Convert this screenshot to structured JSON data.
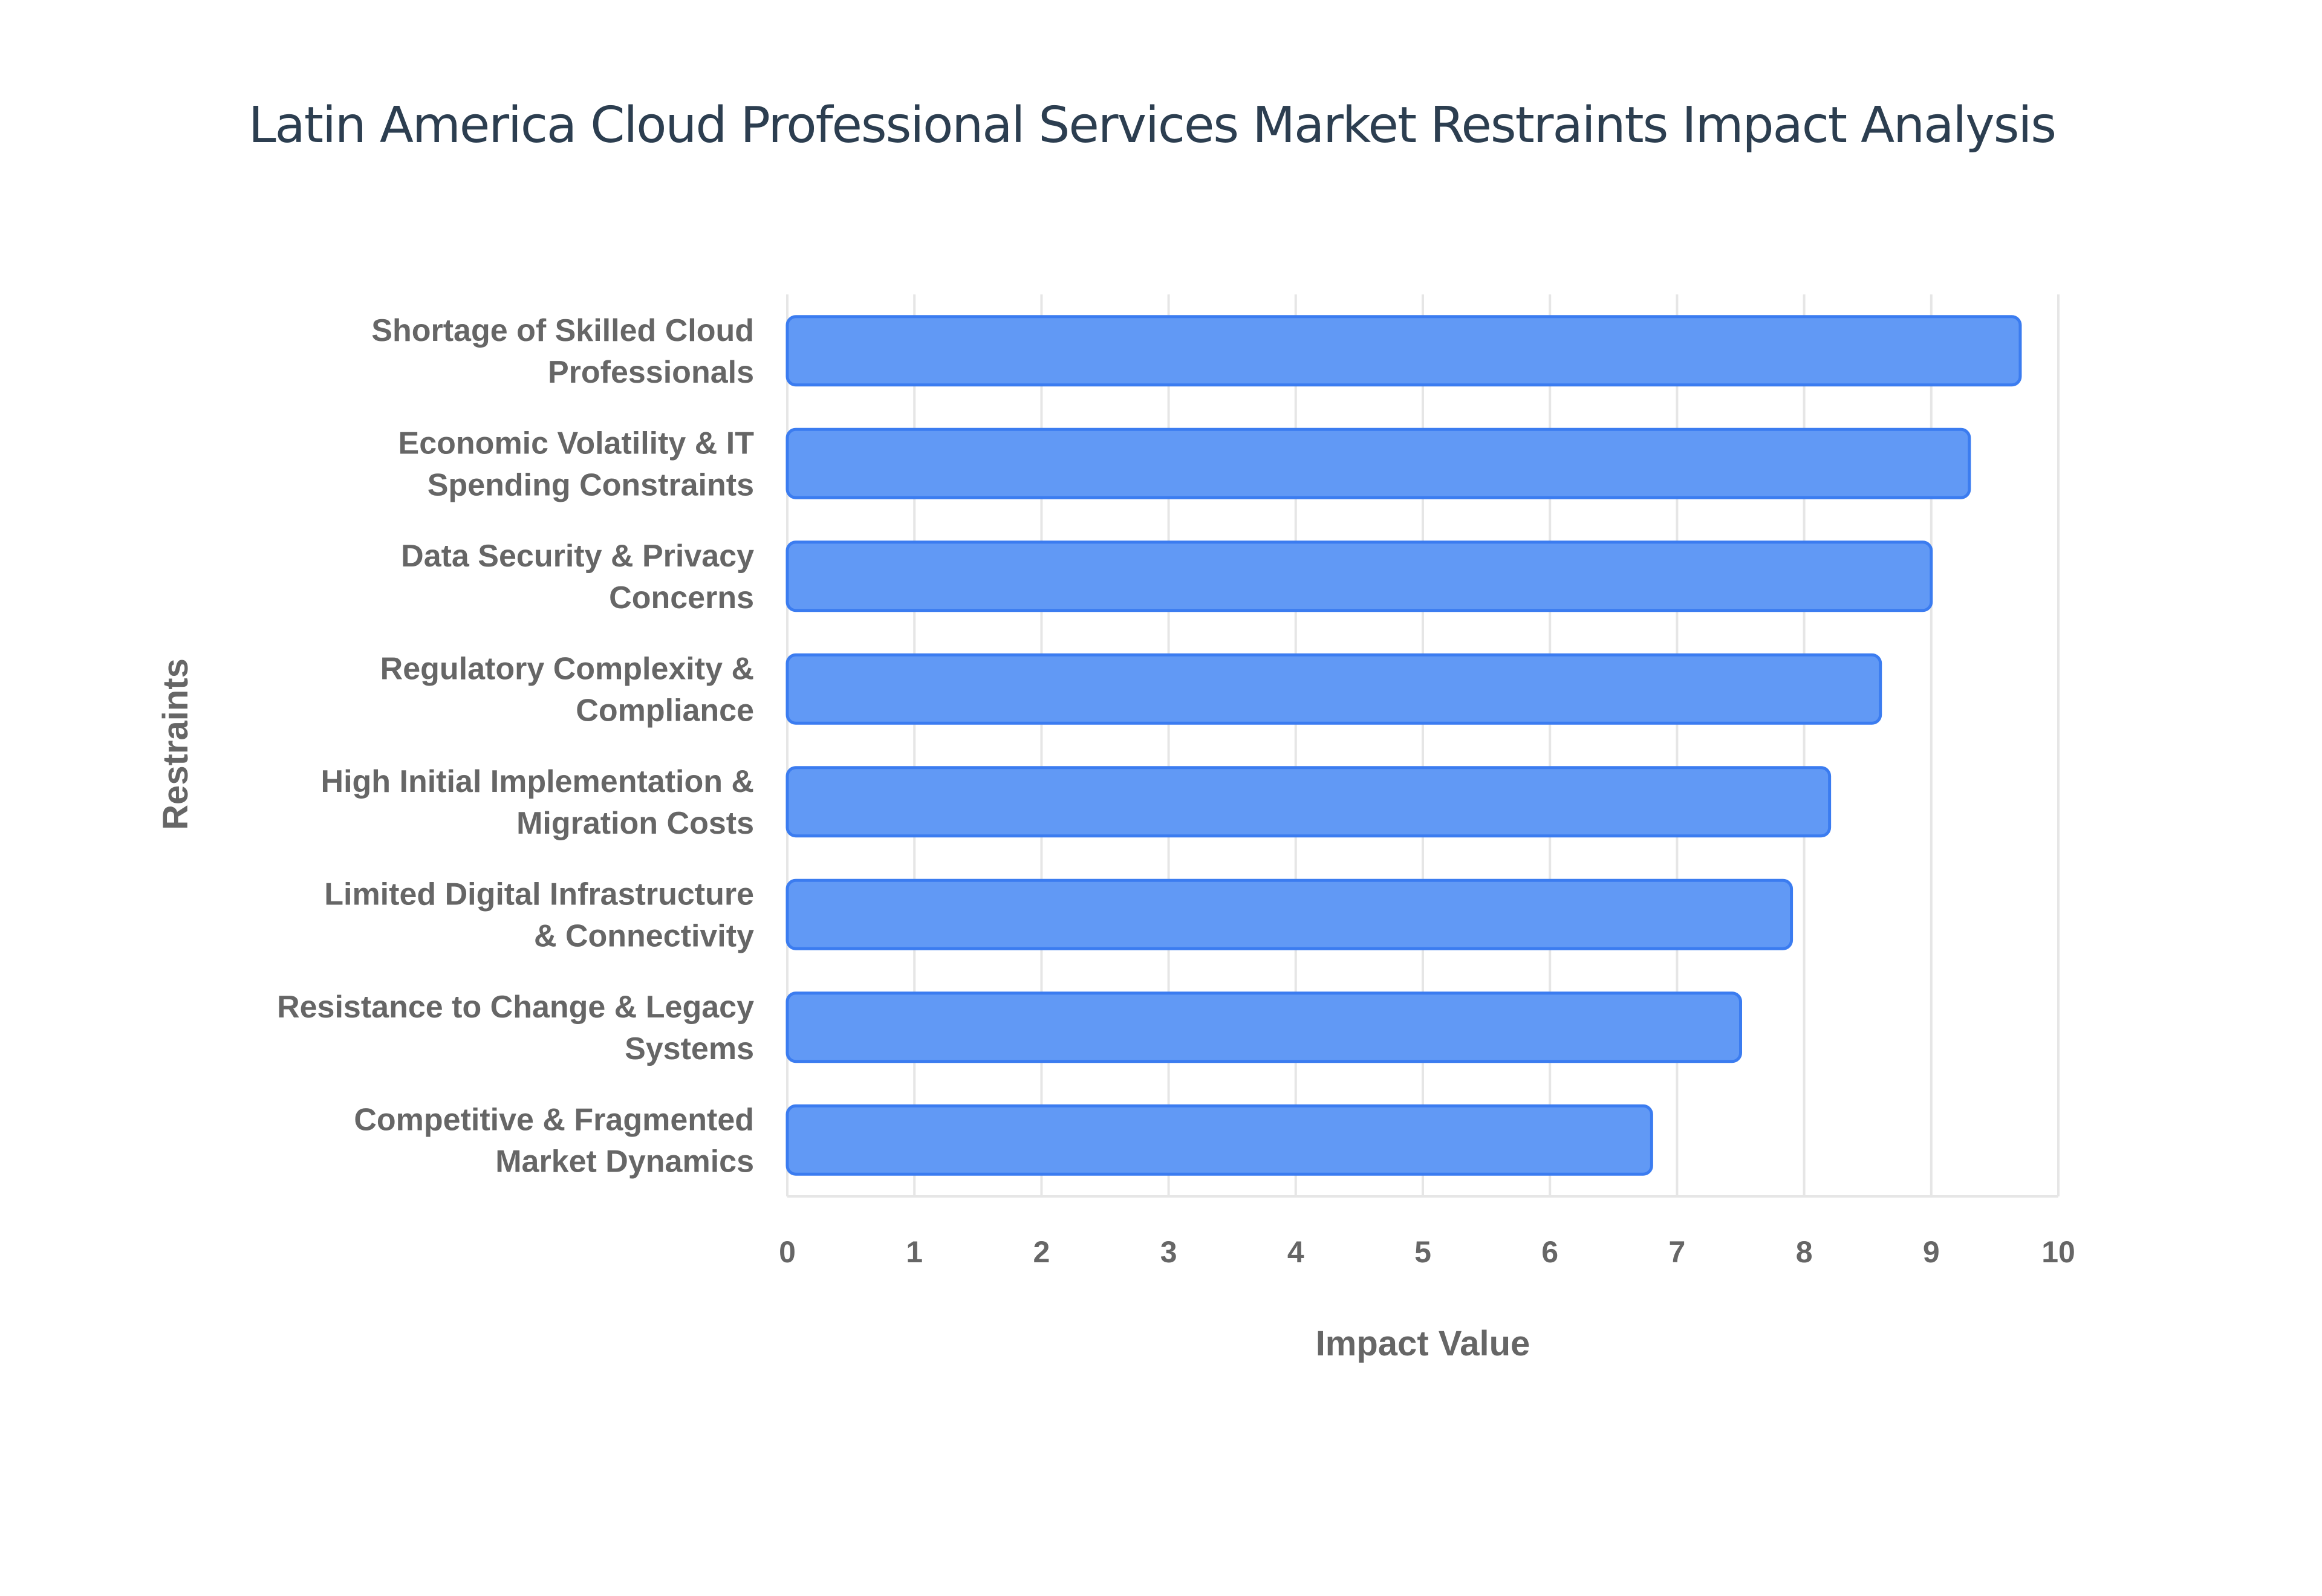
{
  "chart_data": {
    "type": "bar",
    "orientation": "horizontal",
    "title": "Latin America Cloud Professional Services Market Restraints Impact Analysis",
    "xlabel": "Impact Value",
    "ylabel": "Restraints",
    "xlim": [
      0,
      10
    ],
    "xticks": [
      "0",
      "1",
      "2",
      "3",
      "4",
      "5",
      "6",
      "7",
      "8",
      "9",
      "10"
    ],
    "grid": true,
    "categories": [
      [
        "Shortage of Skilled Cloud",
        "Professionals"
      ],
      [
        "Economic Volatility & IT",
        "Spending Constraints"
      ],
      [
        "Data Security & Privacy",
        "Concerns"
      ],
      [
        "Regulatory Complexity &",
        "Compliance"
      ],
      [
        "High Initial Implementation &",
        "Migration Costs"
      ],
      [
        "Limited Digital Infrastructure",
        "& Connectivity"
      ],
      [
        "Resistance to Change & Legacy",
        "Systems"
      ],
      [
        "Competitive & Fragmented",
        "Market Dynamics"
      ]
    ],
    "values": [
      9.7,
      9.3,
      9.0,
      8.6,
      8.2,
      7.9,
      7.5,
      6.8
    ],
    "colors": {
      "bar_fill": "#6199f5",
      "bar_stroke": "#3b7cf0",
      "grid": "#e6e6e6",
      "text": "#666666",
      "title": "#2c3e50"
    }
  }
}
